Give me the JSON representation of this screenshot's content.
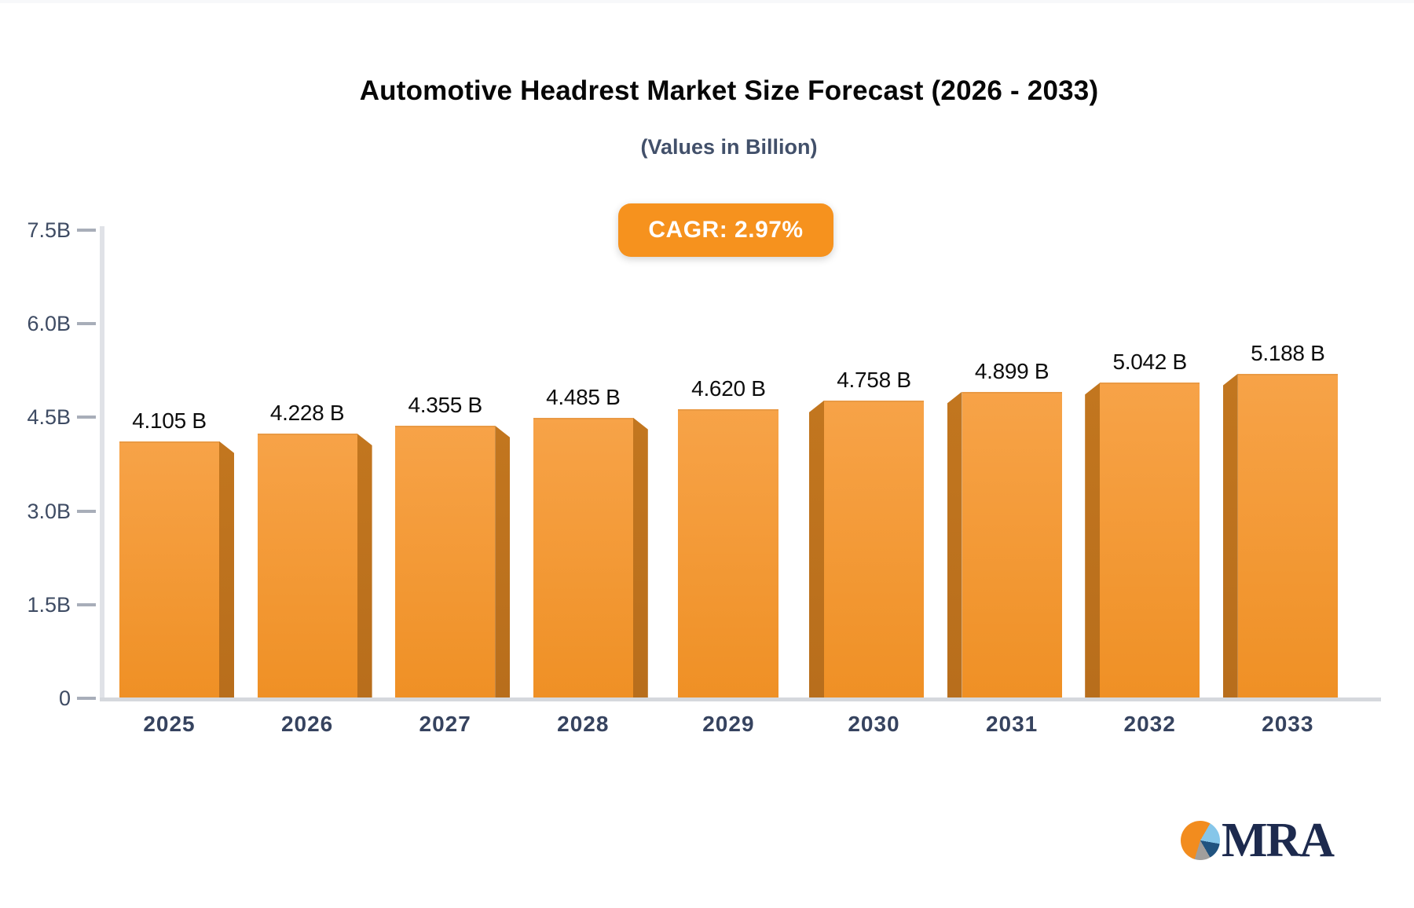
{
  "chart_data": {
    "type": "bar",
    "title": "Automotive Headrest Market Size Forecast (2026 - 2033)",
    "subtitle": "(Values in Billion)",
    "annotation": "CAGR: 2.97%",
    "categories": [
      "2025",
      "2026",
      "2027",
      "2028",
      "2029",
      "2030",
      "2031",
      "2032",
      "2033"
    ],
    "values": [
      4.105,
      4.228,
      4.355,
      4.485,
      4.62,
      4.758,
      4.899,
      5.042,
      5.188
    ],
    "value_labels": [
      "4.105 B",
      "4.228 B",
      "4.355 B",
      "4.485 B",
      "4.620 B",
      "4.758 B",
      "4.899 B",
      "5.042 B",
      "5.188 B"
    ],
    "xlabel": "",
    "ylabel": "",
    "ylim": [
      0,
      7.5
    ],
    "y_ticks": [
      {
        "label": "7.5B",
        "value": 7.5
      },
      {
        "label": "6.0B",
        "value": 6.0
      },
      {
        "label": "4.5B",
        "value": 4.5
      },
      {
        "label": "3.0B",
        "value": 3.0
      },
      {
        "label": "1.5B",
        "value": 1.5
      },
      {
        "label": "0",
        "value": 0
      }
    ],
    "grid": false,
    "legend_position": "none",
    "bar_style": "3d-extruded",
    "colors": {
      "bar_face_top": "#f7a348",
      "bar_face_bottom": "#ef9025",
      "bar_side": "#b86e1c",
      "bar_side_light": "#c2761f",
      "badge_bg": "#f6921e",
      "badge_text": "#ffffff",
      "axis_line": "#d5d8dd",
      "tick_dash": "#a8aeb9",
      "y_tick_label": "#3e4b63",
      "x_tick_label": "#36435f",
      "value_label": "#0e0e0e",
      "title": "#070707",
      "subtitle": "#42506a"
    }
  },
  "logo": {
    "text": "MRA",
    "icon": "pie-chart-icon",
    "text_color": "#1d2a4e",
    "pie_colors": [
      "#f28c1e",
      "#86c6e9",
      "#20537f",
      "#a09e9c"
    ]
  }
}
